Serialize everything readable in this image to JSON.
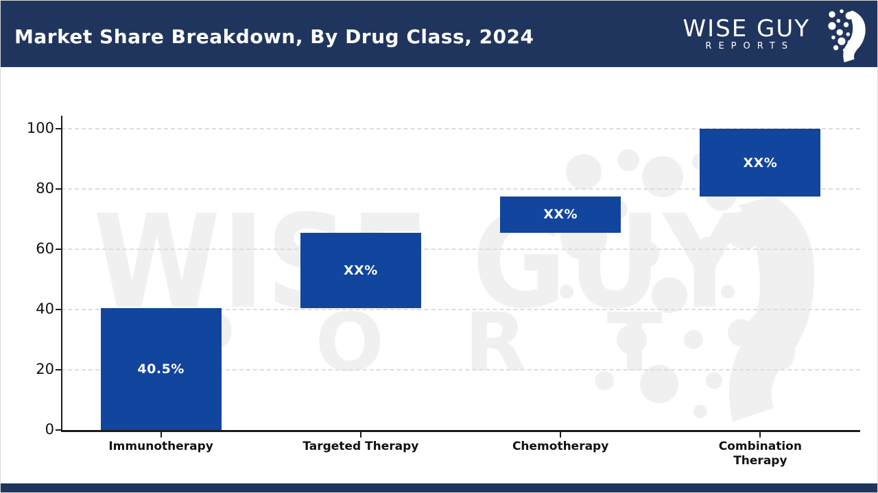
{
  "header": {
    "title": "Market Share Breakdown, By Drug Class, 2024",
    "logo": {
      "line1": "WISE GUY",
      "line2": "REPORTS"
    }
  },
  "watermark": {
    "line1": "WISE GUY",
    "line2": "P O R T S"
  },
  "colors": {
    "header_navy": "#20355E",
    "bar_blue": "#11459E",
    "gridline_gray": "#dcdcdc",
    "watermark_gray": "#f0f0f0"
  },
  "chart_data": {
    "type": "bar",
    "variant": "waterfall",
    "title": "Market Share Breakdown, By Drug Class, 2024",
    "categories": [
      "Immunotherapy",
      "Targeted Therapy",
      "Chemotherapy",
      "Combination Therapy"
    ],
    "segments": [
      {
        "category": "Immunotherapy",
        "start": 0,
        "end": 40.5,
        "label": "40.5%"
      },
      {
        "category": "Targeted Therapy",
        "start": 40.5,
        "end": 65.5,
        "label": "XX%"
      },
      {
        "category": "Chemotherapy",
        "start": 65.5,
        "end": 77.5,
        "label": "XX%"
      },
      {
        "category": "Combination Therapy",
        "start": 77.5,
        "end": 100,
        "label": "XX%"
      }
    ],
    "values": [
      40.5,
      25,
      12,
      22.5
    ],
    "xlabel": "",
    "ylabel": "",
    "ylim": [
      0,
      100
    ],
    "yticks": [
      0,
      20,
      40,
      60,
      80,
      100
    ],
    "grid": true,
    "legend": false,
    "bar_color": "#11459E"
  }
}
